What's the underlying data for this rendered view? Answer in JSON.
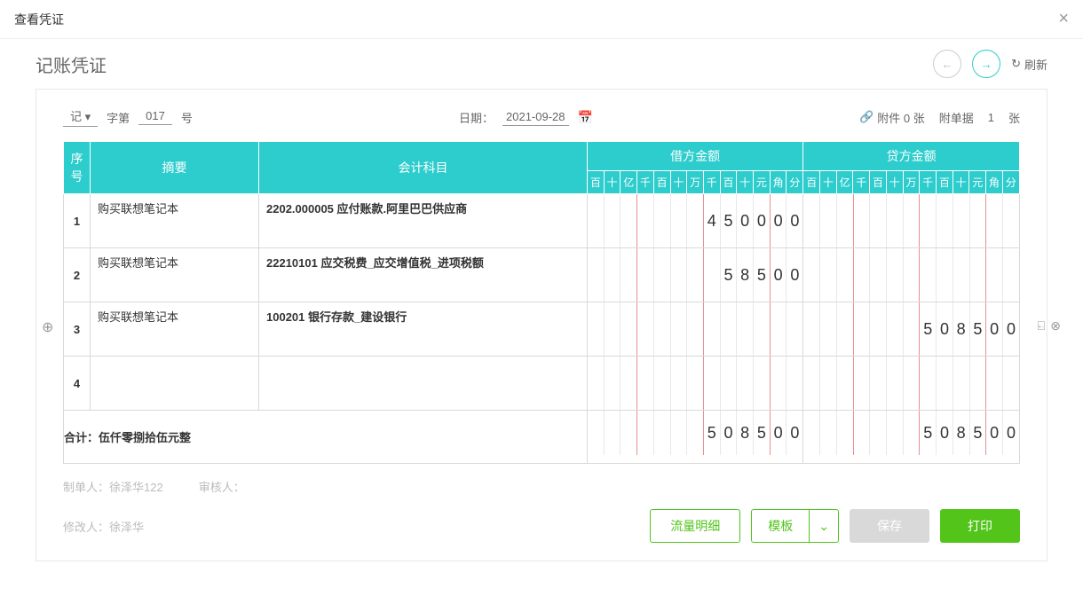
{
  "modal": {
    "title": "查看凭证"
  },
  "page": {
    "title": "记账凭证",
    "refresh": "刷新"
  },
  "header": {
    "word_label": "记",
    "word_suffix": "字第",
    "number": "017",
    "number_suffix": "号",
    "date_label": "日期：",
    "date": "2021-09-28",
    "attachment_label": "附件 0 张",
    "receipts_label": "附单据",
    "receipts_count": "1",
    "receipts_suffix": "张"
  },
  "columns": {
    "seq": "序号",
    "summary": "摘要",
    "account": "会计科目",
    "debit": "借方金额",
    "credit": "贷方金额",
    "digits": [
      "百",
      "十",
      "亿",
      "千",
      "百",
      "十",
      "万",
      "千",
      "百",
      "十",
      "元",
      "角",
      "分"
    ]
  },
  "digit_style": {
    "red_at": [
      2,
      6,
      10
    ],
    "blue_at": [
      12
    ]
  },
  "rows": [
    {
      "seq": "1",
      "summary": "购买联想笔记本",
      "account": "2202.000005 应付账款.阿里巴巴供应商",
      "debit": "450000",
      "credit": ""
    },
    {
      "seq": "2",
      "summary": "购买联想笔记本",
      "account": "22210101 应交税费_应交增值税_进项税额",
      "debit": "58500",
      "credit": ""
    },
    {
      "seq": "3",
      "summary": "购买联想笔记本",
      "account": "100201 银行存款_建设银行",
      "debit": "",
      "credit": "508500"
    },
    {
      "seq": "4",
      "summary": "",
      "account": "",
      "debit": "",
      "credit": ""
    }
  ],
  "total": {
    "label": "合计：伍仟零捌拾伍元整",
    "debit": "508500",
    "credit": "508500"
  },
  "footer": {
    "maker_label": "制单人：",
    "maker": "徐泽华122",
    "reviewer_label": "审核人：",
    "reviewer": "",
    "modifier_label": "修改人：",
    "modifier": "徐泽华"
  },
  "buttons": {
    "flow": "流量明细",
    "template": "模板",
    "save": "保存",
    "print": "打印"
  }
}
